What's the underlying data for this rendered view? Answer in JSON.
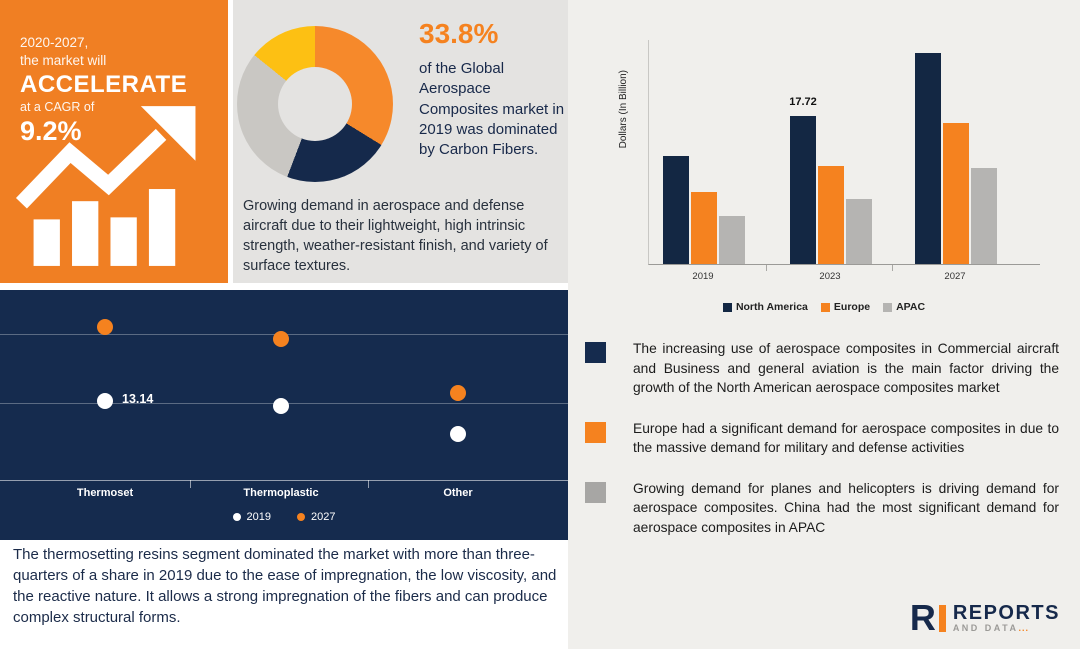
{
  "palette": {
    "orange": "#F07F23",
    "navy": "#152B4E",
    "bar_navy": "#132743",
    "gray": "#B5B4B2",
    "yellow": "#FDC013",
    "panel_gray": "#E4E3E1",
    "right_panel_bg": "#F0EFEC"
  },
  "accelerate_box": {
    "line1": "2020-2027,",
    "line2": "the market will",
    "line3": "ACCELERATE",
    "line4": "at a CAGR of",
    "line5": "9.2%"
  },
  "donut_section": {
    "pct": "33.8%",
    "desc": "of the Global Aerospace Composites market in 2019 was dominated by Carbon Fibers.",
    "paragraph": "Growing demand in aerospace and defense aircraft due to their lightweight, high intrinsic strength, weather-resistant finish, and variety of surface textures."
  },
  "bottom_left_paragraph": "The thermosetting resins segment dominated the market with more than three-quarters of a share in 2019 due to the ease of impregnation, the low viscosity, and the reactive nature. It allows a strong impregnation of the fibers and can produce complex structural forms.",
  "bullets": [
    {
      "color": "#152B4E",
      "text": "The increasing use of aerospace composites in Commercial aircraft and Business and general aviation is the main factor driving the growth of the North American aerospace composites market"
    },
    {
      "color": "#F5821F",
      "text": "Europe had a significant demand for aerospace composites in due to the massive demand for military and defense activities"
    },
    {
      "color": "#A7A6A4",
      "text": "Growing demand for planes and helicopters is driving demand for aerospace composites. China had the most significant demand for aerospace composites in APAC"
    }
  ],
  "logo": {
    "r": "R",
    "reports": "REPORTS",
    "and_data": "AND DATA",
    "dots": "..."
  },
  "chart_data": [
    {
      "type": "pie",
      "donut": true,
      "note": "33.8% slice (orange) = Carbon Fibers share of Global Aerospace Composites market in 2019",
      "segments": [
        {
          "label": "Carbon Fibers",
          "value": 33.8,
          "color": "#F6892B"
        },
        {
          "label": "",
          "value": 22.0,
          "color": "#15294B"
        },
        {
          "label": "",
          "value": 30.0,
          "color": "#C9C7C3"
        },
        {
          "label": "",
          "value": 14.2,
          "color": "#FDC013"
        }
      ]
    },
    {
      "type": "bar",
      "title": "",
      "ylabel": "Dollars (In Billion)",
      "categories": [
        "2019",
        "2023",
        "2027"
      ],
      "series": [
        {
          "name": "North America",
          "color": "#132743",
          "values": [
            13.0,
            17.72,
            25.3
          ]
        },
        {
          "name": "Europe",
          "color": "#F5821F",
          "values": [
            8.7,
            11.8,
            16.9
          ]
        },
        {
          "name": "APAC",
          "color": "#B5B4B2",
          "values": [
            5.8,
            7.8,
            11.5
          ]
        }
      ],
      "ylim": [
        0,
        27
      ],
      "grid": false,
      "legend_position": "bottom",
      "visible_data_labels": [
        {
          "series": "North America",
          "category": "2023",
          "value": 17.72
        }
      ]
    },
    {
      "type": "scatter",
      "categories": [
        "Thermoset",
        "Thermoplastic",
        "Other"
      ],
      "series": [
        {
          "name": "2019",
          "color": "#FFFFFF",
          "values": [
            13.14,
            12.3,
            7.7
          ]
        },
        {
          "name": "2027",
          "color": "#F5821F",
          "values": [
            25.4,
            23.3,
            14.4
          ]
        }
      ],
      "ylim": [
        0,
        31.5
      ],
      "grid": true,
      "legend_position": "bottom",
      "visible_data_labels": [
        {
          "series": "2019",
          "category": "Thermoset",
          "value": 13.14
        }
      ]
    }
  ]
}
